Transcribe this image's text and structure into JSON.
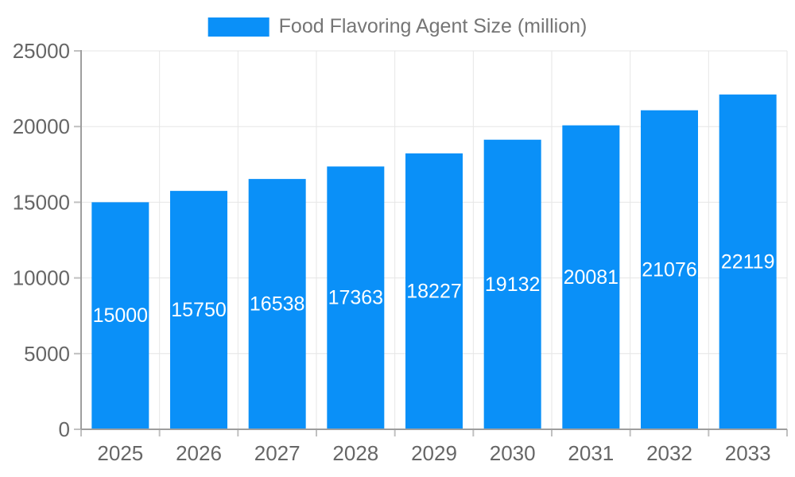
{
  "legend": {
    "label": "Food Flavoring Agent Size (million)"
  },
  "chart_data": {
    "type": "bar",
    "title": "",
    "categories": [
      "2025",
      "2026",
      "2027",
      "2028",
      "2029",
      "2030",
      "2031",
      "2032",
      "2033"
    ],
    "series": [
      {
        "name": "Food Flavoring Agent Size (million)",
        "values": [
          15000,
          15750,
          16538,
          17363,
          18227,
          19132,
          20081,
          21076,
          22119
        ]
      }
    ],
    "value_labels": [
      "15000",
      "15750",
      "16538",
      "17363",
      "18227",
      "19132",
      "20081",
      "21076",
      "22119"
    ],
    "xlabel": "",
    "ylabel": "",
    "ylim": [
      0,
      25000
    ],
    "ytick_step": 5000,
    "ytick_labels": [
      "0",
      "5000",
      "10000",
      "15000",
      "20000",
      "25000"
    ],
    "grid": true,
    "legend_position": "top",
    "colors": {
      "bar": "#0a90f8",
      "value_label": "#ffffff",
      "axis_line": "#9e9e9e",
      "gridline": "#e6e6e6",
      "tick_mark": "#c0c0c0",
      "axis_label": "#666666",
      "legend_text": "#757575",
      "background": "#ffffff"
    }
  }
}
